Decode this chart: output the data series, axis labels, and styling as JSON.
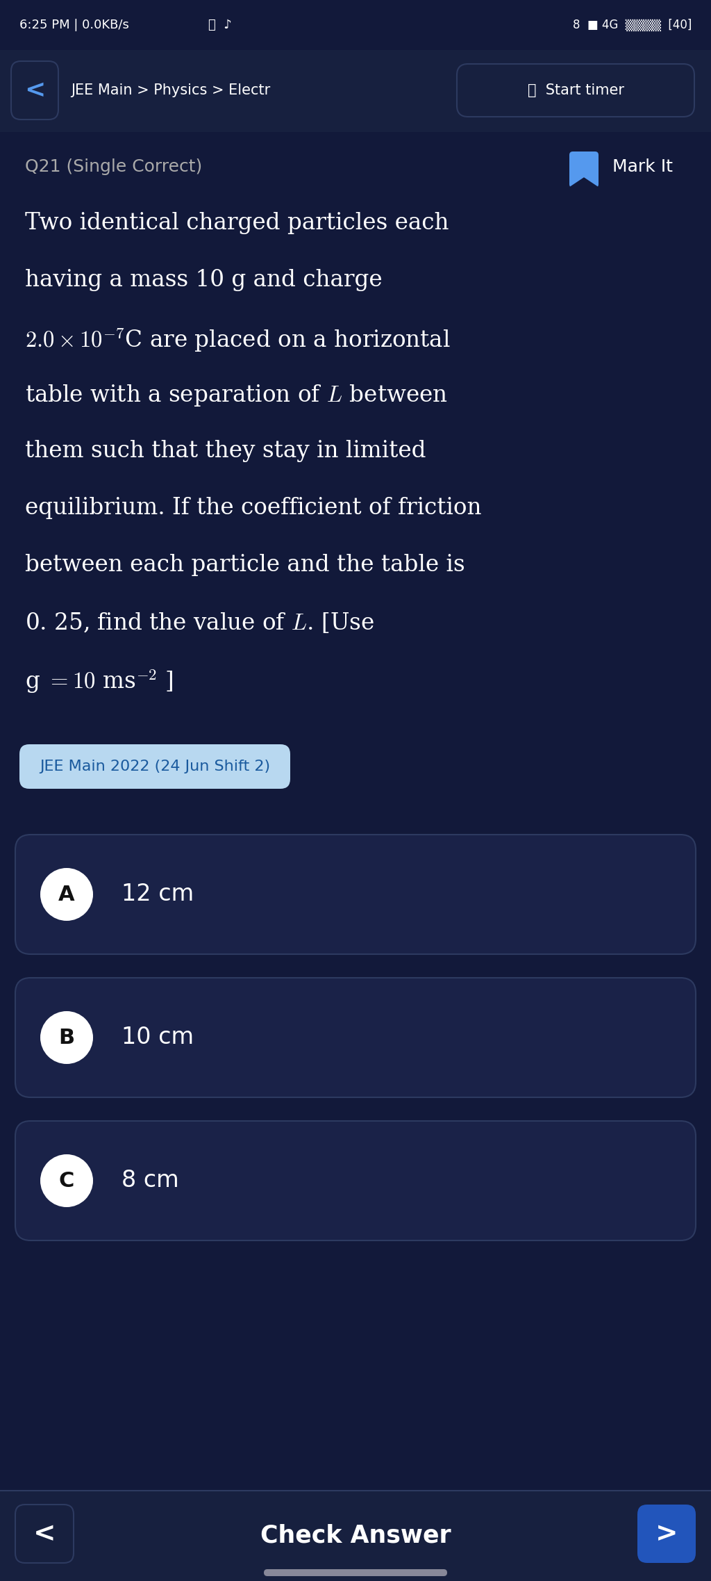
{
  "bg_color": "#12193a",
  "nav_bar_bg": "#17203f",
  "option_bg": "#1a2248",
  "option_border": "#2d3a60",
  "status_bar_left": "6:25 PM | 0.0KB/s",
  "status_bar_right": "8  4G ..|  40",
  "nav_text": "JEE Main > Physics > Electr",
  "nav_right": "Start timer",
  "question_label": "Q21 (Single Correct)",
  "mark_it": "Mark It",
  "tag_text": "JEE Main 2022 (24 Jun Shift 2)",
  "tag_bg": "#b8d8f0",
  "tag_text_color": "#1a5a9e",
  "options": [
    {
      "label": "A",
      "text": "12 cm"
    },
    {
      "label": "B",
      "text": "10 cm"
    },
    {
      "label": "C",
      "text": "8 cm"
    }
  ],
  "circle_bg": "#ffffff",
  "circle_text_color": "#111111",
  "option_text_color": "#ffffff",
  "bottom_bar_text": "Check Answer",
  "bottom_bar_text_color": "#ffffff",
  "arrow_color": "#ffffff",
  "mark_icon_color": "#5599ee",
  "text_color": "#ffffff",
  "text_color_gray": "#aaaaaa",
  "right_btn_color": "#2255bb"
}
